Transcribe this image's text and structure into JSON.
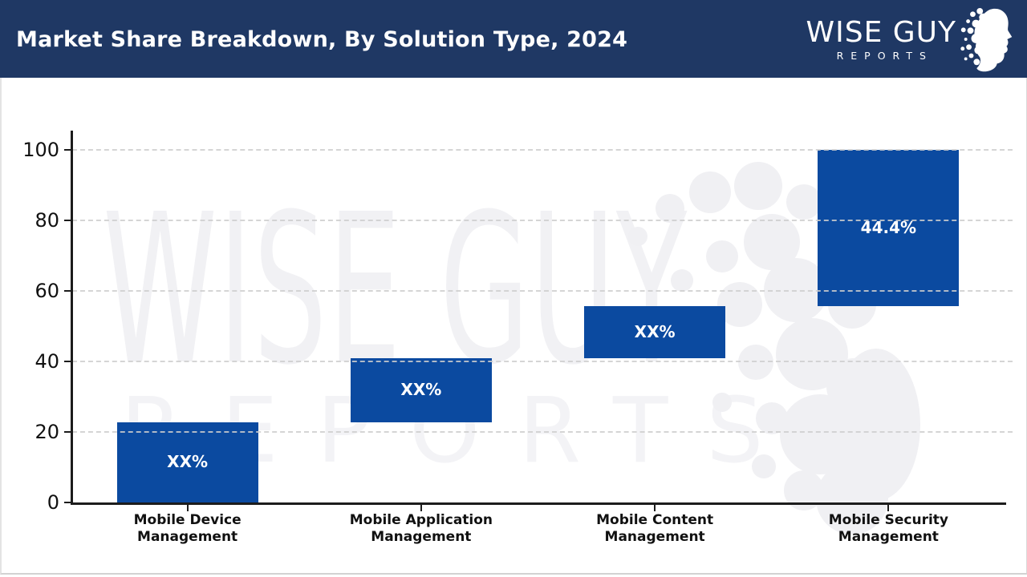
{
  "header": {
    "title": "Market Share Breakdown, By Solution Type, 2024",
    "logo_name": "WISE GUY",
    "logo_sub": "REPORTS"
  },
  "watermark": {
    "line1": "WISE GUY",
    "line2": "REPORTS"
  },
  "colors": {
    "header_bg": "#1f3864",
    "bar_blue": "#0b4aa0",
    "grid_gray": "#cecece",
    "axis_black": "#1c1c1c",
    "watermark_gray": "#f1f1f4"
  },
  "chart_data": {
    "type": "bar",
    "subtype": "floating-waterfall",
    "title": "Market Share Breakdown, By Solution Type, 2024",
    "categories": [
      "Mobile Device Management",
      "Mobile Application Management",
      "Mobile Content Management",
      "Mobile Security Management"
    ],
    "segments": [
      {
        "start": 0,
        "end": 22.7,
        "label": "XX%"
      },
      {
        "start": 22.7,
        "end": 40.9,
        "label": "XX%"
      },
      {
        "start": 40.9,
        "end": 55.6,
        "label": "XX%"
      },
      {
        "start": 55.6,
        "end": 100,
        "label": "44.4%"
      }
    ],
    "ylabel": "",
    "xlabel": "",
    "yticks": [
      0,
      20,
      40,
      60,
      80,
      100
    ],
    "ylim": [
      0,
      105
    ],
    "grid": "horizontal-dashed",
    "legend": "none",
    "bar_color": "#0b4aa0"
  }
}
